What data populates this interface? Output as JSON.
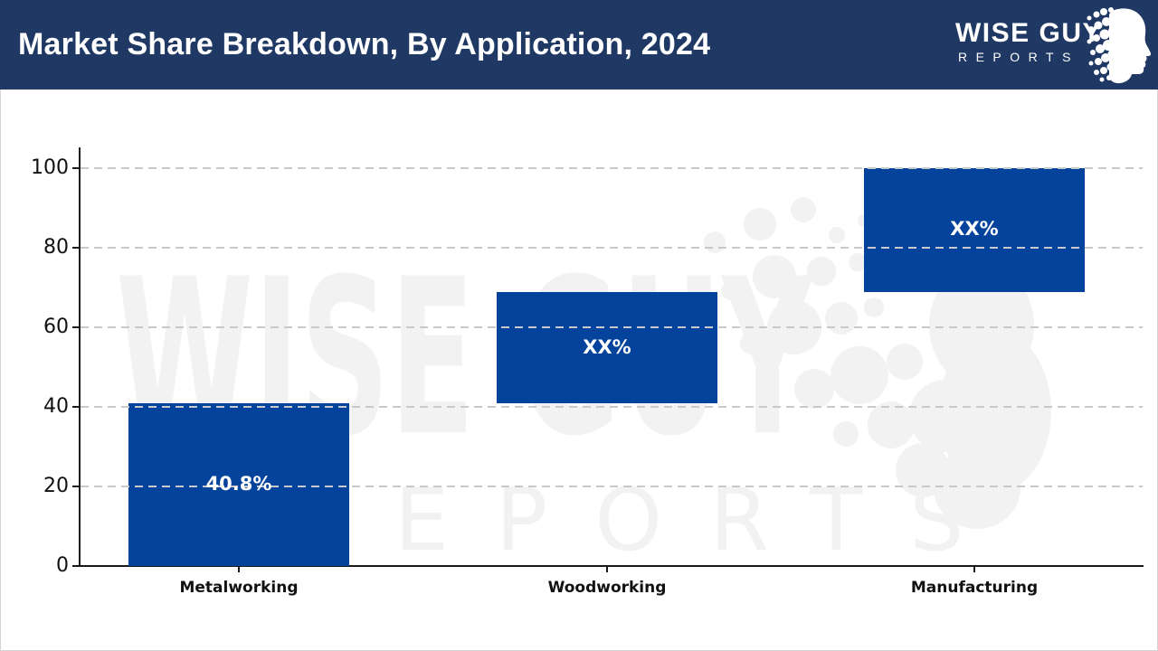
{
  "header": {
    "title": "Market Share Breakdown, By Application, 2024",
    "logo": {
      "line1": "WISE GUY",
      "line2": "REPORTS"
    }
  },
  "watermark": {
    "line1": "WISE GUY",
    "line2": "REPORTS"
  },
  "chart_data": {
    "type": "bar",
    "subtype": "waterfall",
    "title": "Market Share Breakdown, By Application, 2024",
    "categories": [
      "Metalworking",
      "Woodworking",
      "Manufacturing"
    ],
    "series": [
      {
        "name": "Market share (%)",
        "segments": [
          {
            "category": "Metalworking",
            "start": 0,
            "end": 40.8,
            "label": "40.8%"
          },
          {
            "category": "Woodworking",
            "start": 40.8,
            "end": 68.9,
            "label": "XX%"
          },
          {
            "category": "Manufacturing",
            "start": 68.9,
            "end": 100,
            "label": "XX%"
          }
        ]
      }
    ],
    "ylim": [
      0,
      100
    ],
    "yticks": [
      0,
      20,
      40,
      60,
      80,
      100
    ],
    "xlabel": "",
    "ylabel": "",
    "grid": "horizontal-dashed",
    "grid_above_bars": true,
    "legend": "none",
    "bar_color": "#04439c",
    "value_label_color": "#ffffff"
  },
  "colors": {
    "header_bg": "#1f3864",
    "bar": "#04439c",
    "axis": "#1a1a1a",
    "grid": "#c9c9c9",
    "watermark": "#f2f2f2",
    "title_text": "#ffffff"
  }
}
